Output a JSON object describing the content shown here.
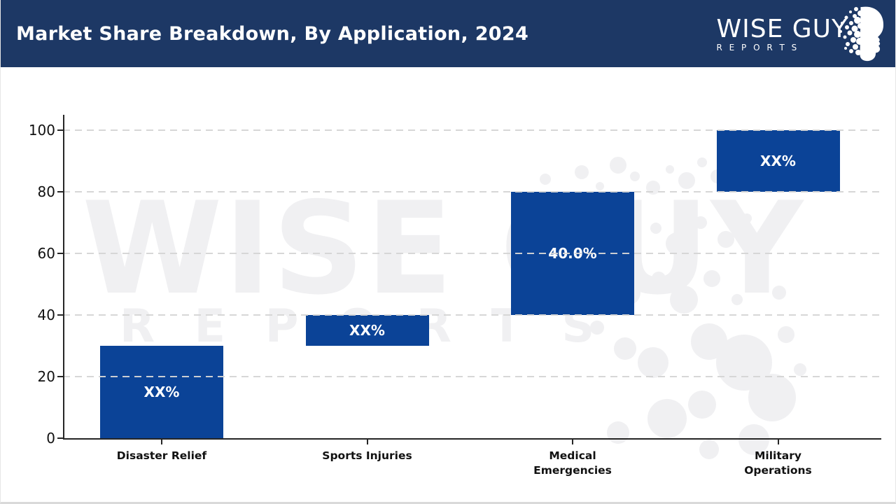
{
  "header": {
    "title": "Market Share Breakdown, By Application, 2024",
    "logo": {
      "line1": "WISE GUY",
      "line2": "R E P O R T S"
    }
  },
  "watermark": {
    "line1": "WISE GUY",
    "line2": "R E P O R T S"
  },
  "colors": {
    "header_bg": "#1d3865",
    "bar": "#0b4397",
    "bar_label": "#ffffff",
    "grid": "#d5d5d5",
    "axis": "#262626",
    "watermark": "#f0f0f2"
  },
  "chart_data": {
    "type": "bar",
    "variant": "floating-waterfall",
    "title": "Market Share Breakdown, By Application, 2024",
    "categories": [
      "Disaster Relief",
      "Sports Injuries",
      "Medical\nEmergencies",
      "Military\nOperations"
    ],
    "series": [
      {
        "name": "Market Share",
        "ranges": [
          [
            0,
            30
          ],
          [
            30,
            40
          ],
          [
            40,
            80
          ],
          [
            80,
            100
          ]
        ]
      }
    ],
    "bar_labels": [
      "XX%",
      "XX%",
      "40.0%",
      "XX%"
    ],
    "xlabel": "",
    "ylabel": "",
    "ylim": [
      0,
      100
    ],
    "yticks": [
      0,
      20,
      40,
      60,
      80,
      100
    ],
    "grid": "horizontal-dashed",
    "legend": "none"
  }
}
